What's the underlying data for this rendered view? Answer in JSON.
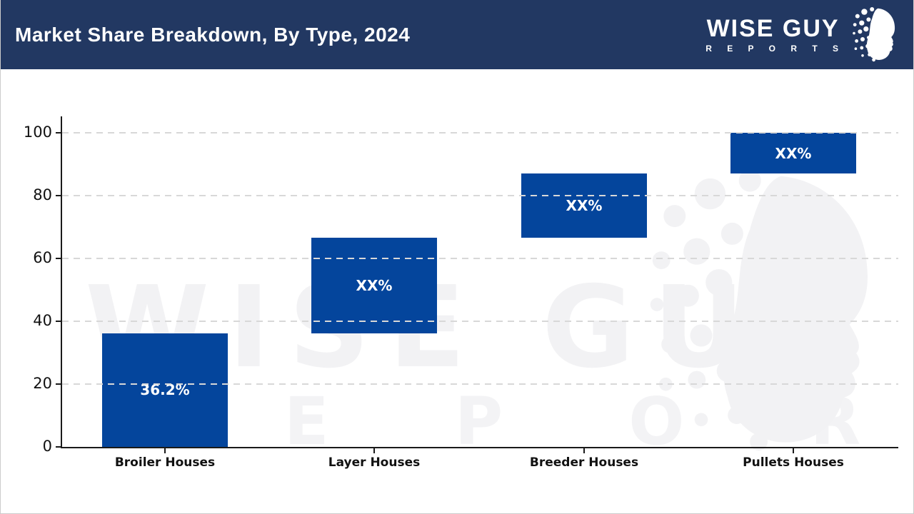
{
  "header": {
    "title": "Market Share Breakdown, By Type, 2024",
    "bg_color": "#223862",
    "logo": {
      "line1": "WISE GUY",
      "line2": "R E P O R T S"
    }
  },
  "watermark": {
    "line1": "WISE GUY",
    "line2": "R E P O R T S"
  },
  "chart_data": {
    "type": "bar",
    "subtype": "waterfall",
    "title": "Market Share Breakdown, By Type, 2024",
    "categories": [
      "Broiler Houses",
      "Layer Houses",
      "Breeder Houses",
      "Pullets Houses"
    ],
    "segments": [
      {
        "category": "Broiler Houses",
        "start": 0,
        "end": 36.2,
        "label": "36.2%"
      },
      {
        "category": "Layer Houses",
        "start": 36.2,
        "end": 66.5,
        "label": "XX%"
      },
      {
        "category": "Breeder Houses",
        "start": 66.5,
        "end": 87,
        "label": "XX%"
      },
      {
        "category": "Pullets Houses",
        "start": 87,
        "end": 100,
        "label": "XX%"
      }
    ],
    "xlabel": "",
    "ylabel": "",
    "ylim": [
      0,
      100
    ],
    "yticks": [
      0,
      20,
      40,
      60,
      80,
      100
    ],
    "grid": "dashed-horizontal",
    "legend": "none",
    "bar_color": "#04459c",
    "bar_label_color": "#ffffff"
  }
}
